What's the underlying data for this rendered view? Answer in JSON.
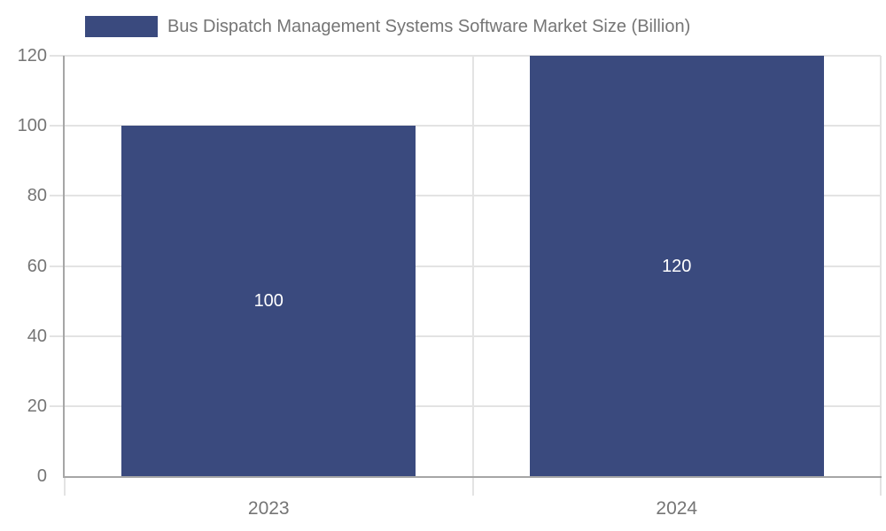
{
  "chart_data": {
    "type": "bar",
    "series_name": "Bus Dispatch Management Systems Software Market Size (Billion)",
    "categories": [
      "2023",
      "2024"
    ],
    "values": [
      100,
      120
    ],
    "bar_labels": [
      "100",
      "120"
    ],
    "title": "",
    "xlabel": "",
    "ylabel": "",
    "ylim": [
      0,
      120
    ],
    "yticks": [
      0,
      20,
      40,
      60,
      80,
      100,
      120
    ],
    "grid": true,
    "legend_position": "top-left",
    "bar_label_position": "inside-center",
    "colors": {
      "bar": "#3A4A7E",
      "grid_line": "#e3e3e3",
      "axis_line": "#a6a6a6",
      "tick_text": "#757575",
      "legend_text": "#757575",
      "bar_label_text": "#ffffff",
      "background": "#ffffff"
    }
  }
}
